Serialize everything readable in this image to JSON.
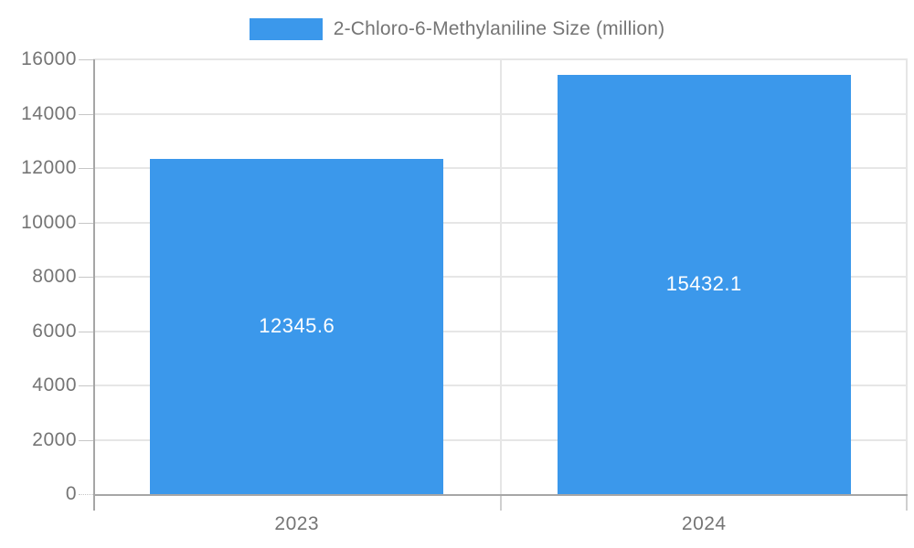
{
  "chart_data": {
    "type": "bar",
    "title": "2-Chloro-6-Methylaniline Size (million)",
    "legend": {
      "position": "top",
      "label": "2-Chloro-6-Methylaniline Size (million)"
    },
    "categories": [
      "2023",
      "2024"
    ],
    "series": [
      {
        "name": "2-Chloro-6-Methylaniline Size (million)",
        "values": [
          12345.6,
          15432.1
        ]
      }
    ],
    "value_labels": [
      "12345.6",
      "15432.1"
    ],
    "xlabel": "",
    "ylabel": "",
    "ylim": [
      0,
      16000
    ],
    "yticks": [
      0,
      2000,
      4000,
      6000,
      8000,
      10000,
      12000,
      14000,
      16000
    ],
    "ytick_labels": [
      "0",
      "2000",
      "4000",
      "6000",
      "8000",
      "10000",
      "12000",
      "14000",
      "16000"
    ],
    "grid": true,
    "colors": {
      "bar": "#3b98eb",
      "grid": "#e6e6e6",
      "axis": "#a6a6a6",
      "tick": "#c6c6c6",
      "subtick": "#cfcfcf",
      "text": "#757575",
      "value_label": "#ffffff",
      "background": "#ffffff"
    }
  }
}
